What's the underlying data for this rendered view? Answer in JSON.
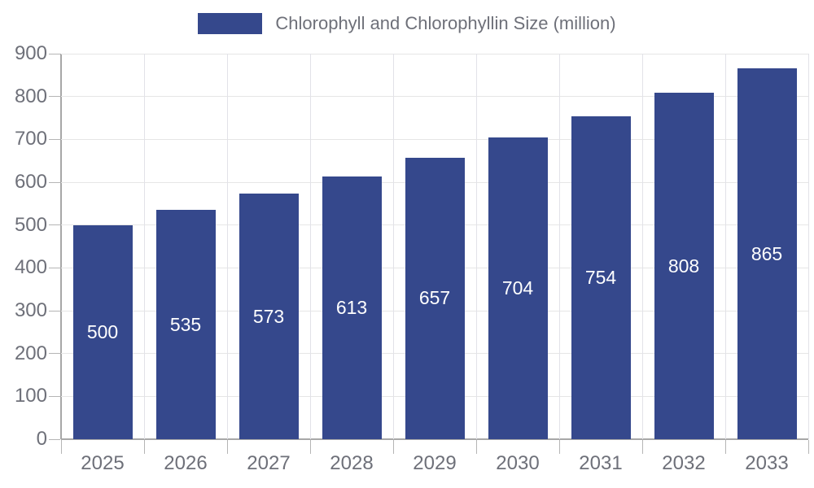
{
  "chart_data": {
    "type": "bar",
    "title": "Chlorophyll and Chlorophyllin Size (million)",
    "legend": [
      "Chlorophyll and Chlorophyllin Size (million)"
    ],
    "legend_position": "top",
    "categories": [
      "2025",
      "2026",
      "2027",
      "2028",
      "2029",
      "2030",
      "2031",
      "2032",
      "2033"
    ],
    "series": [
      {
        "name": "Chlorophyll and Chlorophyllin Size (million)",
        "values": [
          500,
          535,
          573,
          613,
          657,
          704,
          754,
          808,
          865
        ]
      }
    ],
    "xlabel": "",
    "ylabel": "",
    "ylim": [
      0,
      900
    ],
    "y_ticks": [
      0,
      100,
      200,
      300,
      400,
      500,
      600,
      700,
      800,
      900
    ],
    "grid": "both",
    "bar_label_position": "inside-center"
  },
  "colors": {
    "bar_fill": "#35488C",
    "bar_label": "#ffffff",
    "legend_text": "#6E7079",
    "axis_text": "#6E7079",
    "axis_line": "#A7A7A7",
    "tick_line": "#B5B5B5",
    "gridline_h": "#E6E6E6",
    "gridline_v": "#E2E2E8",
    "background": "#ffffff"
  }
}
